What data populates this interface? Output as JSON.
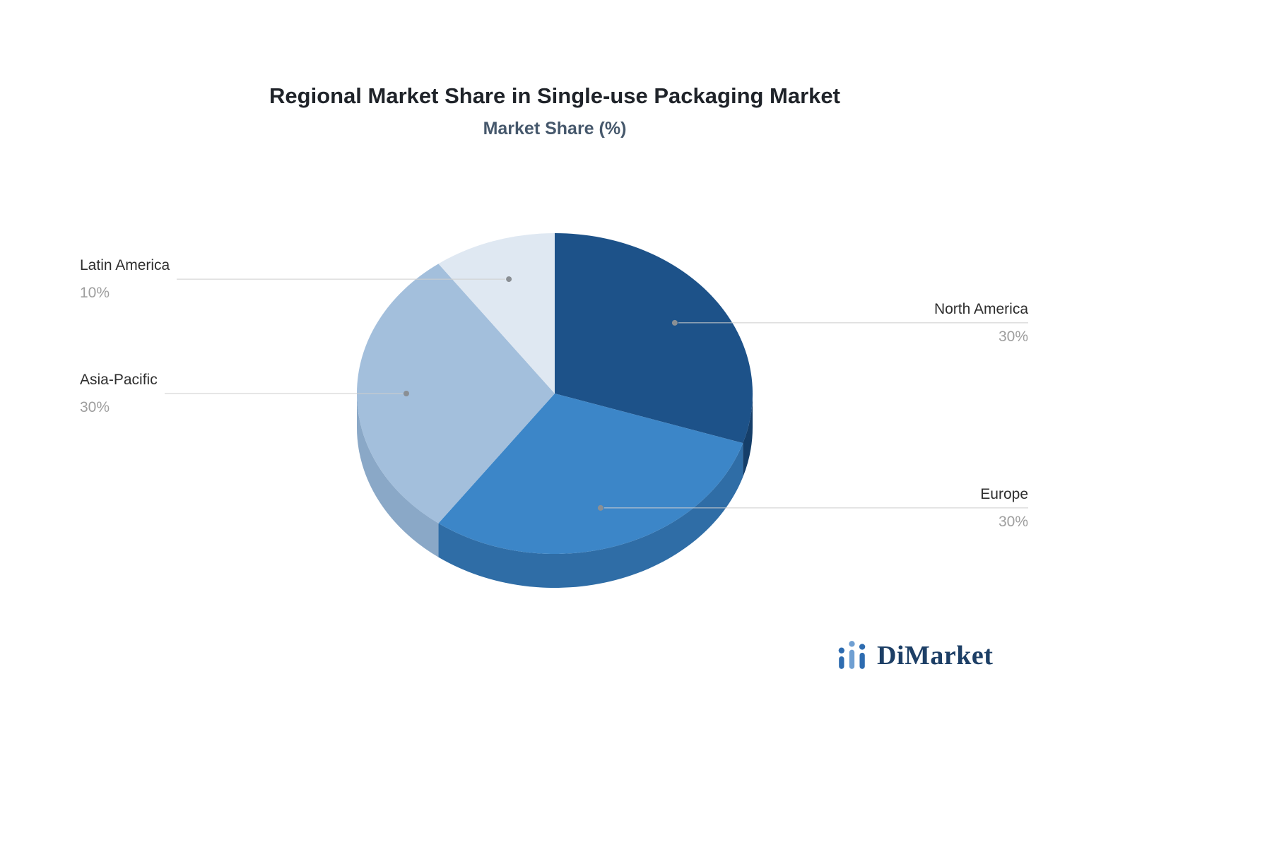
{
  "header": {
    "title": "Regional Market Share in Single-use Packaging Market",
    "subtitle": "Market Share (%)"
  },
  "chart_data": {
    "type": "pie",
    "title": "Regional Market Share in Single-use Packaging Market",
    "subtitle": "Market Share (%)",
    "unit": "%",
    "effect": "3d",
    "direction": "clockwise",
    "start_angle_deg": 0,
    "labels_position": "outside-with-leader-lines",
    "segments": [
      {
        "label": "North America",
        "value": 30,
        "display_value": "30%",
        "color": "#1d5289",
        "side_color": "#153e69"
      },
      {
        "label": "Europe",
        "value": 30,
        "display_value": "30%",
        "color": "#3c86c8",
        "side_color": "#2f6da6"
      },
      {
        "label": "Asia-Pacific",
        "value": 30,
        "display_value": "30%",
        "color": "#a3bfdc",
        "side_color": "#8aa8c7"
      },
      {
        "label": "Latin America",
        "value": 10,
        "display_value": "10%",
        "color": "#dfe8f2",
        "side_color": "#c3d2e3"
      }
    ],
    "leader_line_color": "#cdcdcd",
    "leader_dot_color": "#8a8f94"
  },
  "branding": {
    "logo_text": "DiMarket",
    "logo_icon": "bar-chart-icon",
    "logo_color": "#1d3f66",
    "icon_color": "#2e6cb0",
    "icon_color_light": "#6f9fd2"
  }
}
